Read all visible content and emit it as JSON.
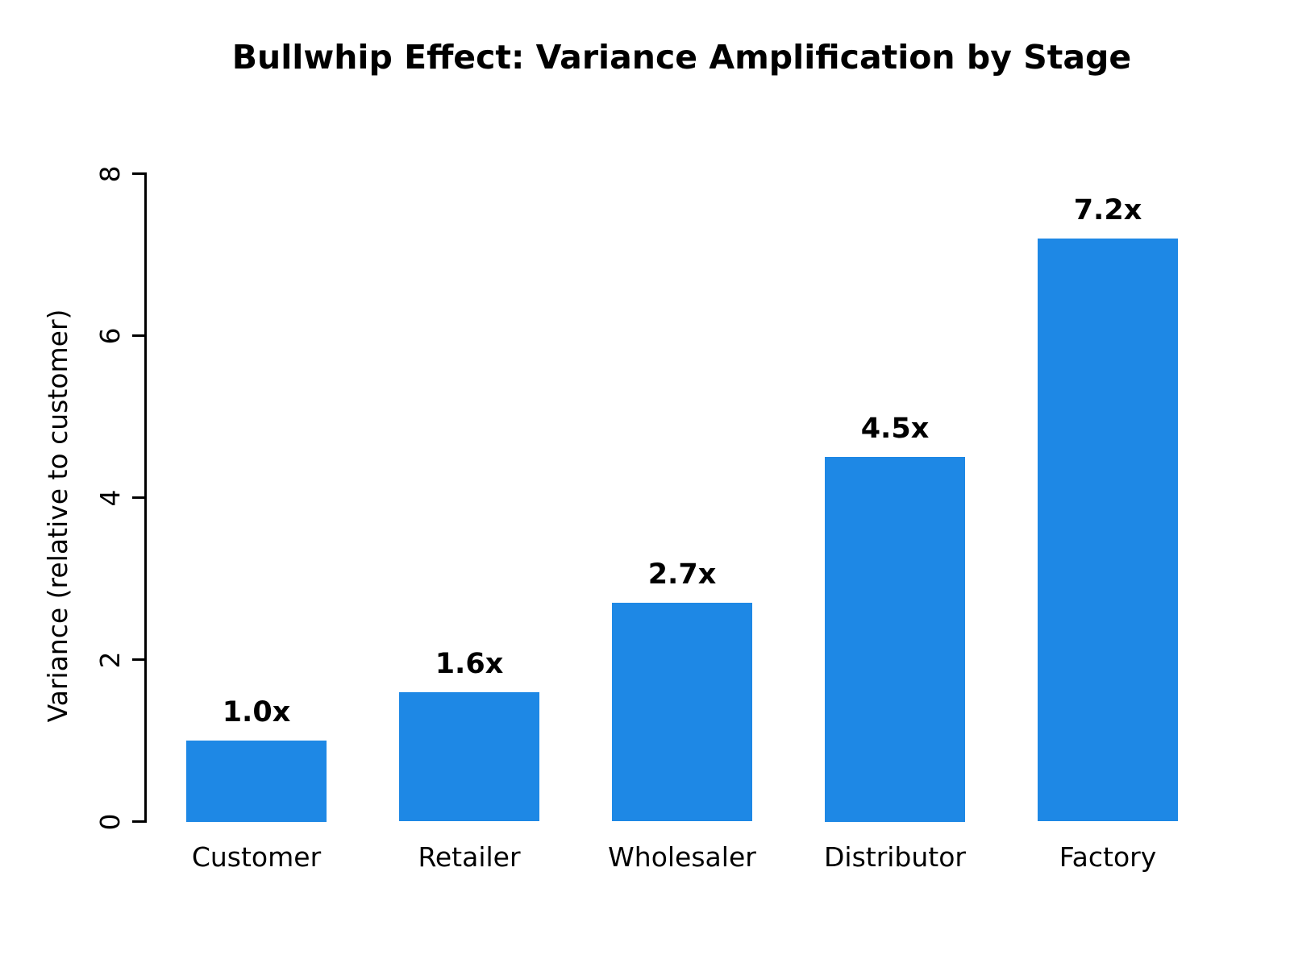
{
  "chart_data": {
    "type": "bar",
    "title": "Bullwhip Effect: Variance Amplification by Stage",
    "xlabel": "",
    "ylabel": "Variance (relative to customer)",
    "categories": [
      "Customer",
      "Retailer",
      "Wholesaler",
      "Distributor",
      "Factory"
    ],
    "values": [
      1.0,
      1.6,
      2.7,
      4.5,
      7.2
    ],
    "bar_labels": [
      "1.0x",
      "1.6x",
      "2.7x",
      "4.5x",
      "7.2x"
    ],
    "ylim": [
      0,
      8
    ],
    "yticks": [
      0,
      2,
      4,
      6,
      8
    ],
    "ytick_labels": [
      "0",
      "2",
      "4",
      "6",
      "8"
    ],
    "grid": false,
    "legend": null,
    "colors": {
      "bar": "#1E88E5",
      "axis": "#000000",
      "text": "#000000",
      "background": "#FFFFFF"
    }
  }
}
